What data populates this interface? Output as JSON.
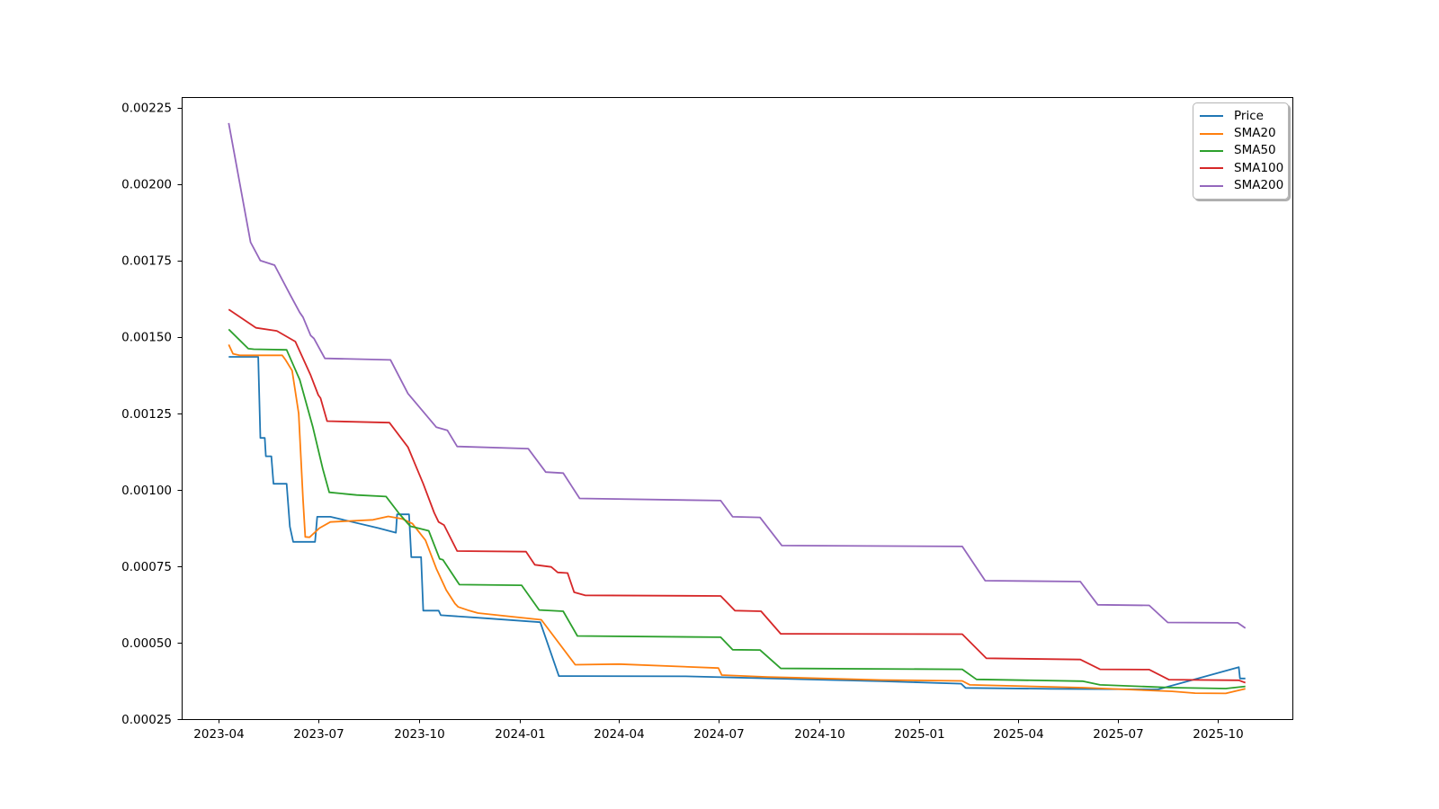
{
  "figure": {
    "background": "#ffffff"
  },
  "chart_data": {
    "type": "line",
    "title": "",
    "xlabel": "",
    "ylabel": "",
    "grid": false,
    "legend": {
      "position": "upper-right"
    },
    "x_axis": {
      "lim": [
        "2023-02-26",
        "2025-12-08"
      ],
      "tick_labels": [
        "2023-04",
        "2023-07",
        "2023-10",
        "2024-01",
        "2024-04",
        "2024-07",
        "2024-10",
        "2025-01",
        "2025-04",
        "2025-07",
        "2025-10"
      ]
    },
    "y_axis": {
      "lim": [
        0.00025,
        0.002285
      ],
      "tick_values": [
        0.00025,
        0.0005,
        0.00075,
        0.001,
        0.00125,
        0.0015,
        0.00175,
        0.002,
        0.00225
      ],
      "tick_labels": [
        "0.00025",
        "0.00050",
        "0.00075",
        "0.00100",
        "0.00125",
        "0.00150",
        "0.00175",
        "0.00200",
        "0.00225"
      ]
    },
    "series": [
      {
        "name": "Price",
        "color": "#1f77b4",
        "points": [
          [
            "2023-04-10",
            0.001435
          ],
          [
            "2023-05-07",
            0.001435
          ],
          [
            "2023-05-09",
            0.00117
          ],
          [
            "2023-05-13",
            0.00117
          ],
          [
            "2023-05-14",
            0.00111
          ],
          [
            "2023-05-19",
            0.00111
          ],
          [
            "2023-05-21",
            0.00102
          ],
          [
            "2023-06-02",
            0.00102
          ],
          [
            "2023-06-05",
            0.00088
          ],
          [
            "2023-06-08",
            0.00083
          ],
          [
            "2023-06-28",
            0.00083
          ],
          [
            "2023-06-30",
            0.000912
          ],
          [
            "2023-07-12",
            0.000912
          ],
          [
            "2023-08-25",
            0.000875
          ],
          [
            "2023-09-10",
            0.00086
          ],
          [
            "2023-09-11",
            0.00092
          ],
          [
            "2023-09-22",
            0.00092
          ],
          [
            "2023-09-24",
            0.00078
          ],
          [
            "2023-10-03",
            0.00078
          ],
          [
            "2023-10-05",
            0.000605
          ],
          [
            "2023-10-19",
            0.000605
          ],
          [
            "2023-10-21",
            0.00059
          ],
          [
            "2023-12-01",
            0.00058
          ],
          [
            "2024-01-20",
            0.000567
          ],
          [
            "2024-02-06",
            0.000391
          ],
          [
            "2024-06-01",
            0.00039
          ],
          [
            "2024-11-27",
            0.000374
          ],
          [
            "2025-02-08",
            0.000366
          ],
          [
            "2025-02-12",
            0.000352
          ],
          [
            "2025-05-01",
            0.000349
          ],
          [
            "2025-08-07",
            0.000347
          ],
          [
            "2025-10-20",
            0.00042
          ],
          [
            "2025-10-21",
            0.000383
          ],
          [
            "2025-10-26",
            0.000383
          ]
        ]
      },
      {
        "name": "SMA20",
        "color": "#ff7f0e",
        "points": [
          [
            "2023-04-10",
            0.001475
          ],
          [
            "2023-04-14",
            0.001445
          ],
          [
            "2023-04-20",
            0.00144
          ],
          [
            "2023-05-29",
            0.00144
          ],
          [
            "2023-06-01",
            0.001425
          ],
          [
            "2023-06-07",
            0.00139
          ],
          [
            "2023-06-13",
            0.00125
          ],
          [
            "2023-06-17",
            0.00097
          ],
          [
            "2023-06-19",
            0.000846
          ],
          [
            "2023-06-23",
            0.000845
          ],
          [
            "2023-07-02",
            0.000875
          ],
          [
            "2023-07-12",
            0.000895
          ],
          [
            "2023-08-20",
            0.000902
          ],
          [
            "2023-09-03",
            0.000913
          ],
          [
            "2023-09-16",
            0.000905
          ],
          [
            "2023-09-25",
            0.00089
          ],
          [
            "2023-10-07",
            0.000835
          ],
          [
            "2023-10-17",
            0.000742
          ],
          [
            "2023-10-26",
            0.000672
          ],
          [
            "2023-11-03",
            0.000628
          ],
          [
            "2023-11-06",
            0.000617
          ],
          [
            "2023-11-16",
            0.000605
          ],
          [
            "2023-11-24",
            0.000597
          ],
          [
            "2023-12-18",
            0.000588
          ],
          [
            "2024-01-21",
            0.000575
          ],
          [
            "2024-02-21",
            0.000428
          ],
          [
            "2024-04-01",
            0.00043
          ],
          [
            "2024-07-01",
            0.000417
          ],
          [
            "2024-07-04",
            0.000394
          ],
          [
            "2024-08-15",
            0.000388
          ],
          [
            "2024-11-27",
            0.000378
          ],
          [
            "2025-02-09",
            0.000375
          ],
          [
            "2025-02-16",
            0.000362
          ],
          [
            "2025-05-30",
            0.000353
          ],
          [
            "2025-08-20",
            0.000341
          ],
          [
            "2025-09-10",
            0.000335
          ],
          [
            "2025-10-08",
            0.000334
          ],
          [
            "2025-10-26",
            0.000349
          ]
        ]
      },
      {
        "name": "SMA50",
        "color": "#2ca02c",
        "points": [
          [
            "2023-04-10",
            0.001525
          ],
          [
            "2023-04-28",
            0.001462
          ],
          [
            "2023-05-03",
            0.00146
          ],
          [
            "2023-06-02",
            0.001458
          ],
          [
            "2023-06-14",
            0.00136
          ],
          [
            "2023-06-26",
            0.001205
          ],
          [
            "2023-07-05",
            0.00107
          ],
          [
            "2023-07-11",
            0.000992
          ],
          [
            "2023-08-05",
            0.000983
          ],
          [
            "2023-09-01",
            0.000978
          ],
          [
            "2023-09-13",
            0.000922
          ],
          [
            "2023-09-23",
            0.000881
          ],
          [
            "2023-10-10",
            0.000866
          ],
          [
            "2023-10-20",
            0.000774
          ],
          [
            "2023-10-23",
            0.000771
          ],
          [
            "2023-11-07",
            0.00069
          ],
          [
            "2024-01-03",
            0.000688
          ],
          [
            "2024-01-19",
            0.000607
          ],
          [
            "2024-02-10",
            0.000603
          ],
          [
            "2024-02-23",
            0.000522
          ],
          [
            "2024-07-03",
            0.000518
          ],
          [
            "2024-07-14",
            0.000477
          ],
          [
            "2024-08-08",
            0.000476
          ],
          [
            "2024-08-27",
            0.000416
          ],
          [
            "2025-02-09",
            0.000413
          ],
          [
            "2025-02-22",
            0.00038
          ],
          [
            "2025-05-30",
            0.000374
          ],
          [
            "2025-06-15",
            0.000362
          ],
          [
            "2025-08-20",
            0.000353
          ],
          [
            "2025-10-08",
            0.00035
          ],
          [
            "2025-10-26",
            0.000357
          ]
        ]
      },
      {
        "name": "SMA100",
        "color": "#d62728",
        "points": [
          [
            "2023-04-10",
            0.00159
          ],
          [
            "2023-05-05",
            0.00153
          ],
          [
            "2023-05-24",
            0.00152
          ],
          [
            "2023-06-10",
            0.001485
          ],
          [
            "2023-06-24",
            0.001375
          ],
          [
            "2023-07-01",
            0.00131
          ],
          [
            "2023-07-03",
            0.0013
          ],
          [
            "2023-07-09",
            0.001225
          ],
          [
            "2023-09-04",
            0.00122
          ],
          [
            "2023-09-21",
            0.00114
          ],
          [
            "2023-10-05",
            0.00102
          ],
          [
            "2023-10-15",
            0.000925
          ],
          [
            "2023-10-19",
            0.000895
          ],
          [
            "2023-10-24",
            0.000885
          ],
          [
            "2023-11-05",
            0.0008
          ],
          [
            "2024-01-07",
            0.000798
          ],
          [
            "2024-01-15",
            0.000755
          ],
          [
            "2024-01-30",
            0.000748
          ],
          [
            "2024-02-05",
            0.00073
          ],
          [
            "2024-02-14",
            0.000728
          ],
          [
            "2024-02-20",
            0.000665
          ],
          [
            "2024-03-01",
            0.000655
          ],
          [
            "2024-07-03",
            0.000653
          ],
          [
            "2024-07-16",
            0.000605
          ],
          [
            "2024-08-09",
            0.000603
          ],
          [
            "2024-08-27",
            0.000529
          ],
          [
            "2025-02-09",
            0.000528
          ],
          [
            "2025-03-03",
            0.000449
          ],
          [
            "2025-05-28",
            0.000445
          ],
          [
            "2025-06-15",
            0.000413
          ],
          [
            "2025-07-30",
            0.000412
          ],
          [
            "2025-08-17",
            0.000379
          ],
          [
            "2025-10-20",
            0.000377
          ],
          [
            "2025-10-26",
            0.000369
          ]
        ]
      },
      {
        "name": "SMA200",
        "color": "#9467bd",
        "points": [
          [
            "2023-04-10",
            0.0022
          ],
          [
            "2023-04-30",
            0.00181
          ],
          [
            "2023-05-09",
            0.00175
          ],
          [
            "2023-05-22",
            0.001735
          ],
          [
            "2023-06-05",
            0.00164
          ],
          [
            "2023-06-14",
            0.00158
          ],
          [
            "2023-06-17",
            0.001565
          ],
          [
            "2023-06-24",
            0.001505
          ],
          [
            "2023-06-27",
            0.001495
          ],
          [
            "2023-07-07",
            0.00143
          ],
          [
            "2023-09-05",
            0.001425
          ],
          [
            "2023-09-21",
            0.001315
          ],
          [
            "2023-10-17",
            0.001205
          ],
          [
            "2023-10-27",
            0.001195
          ],
          [
            "2023-11-05",
            0.001142
          ],
          [
            "2024-01-09",
            0.001135
          ],
          [
            "2024-01-25",
            0.001058
          ],
          [
            "2024-02-10",
            0.001055
          ],
          [
            "2024-02-25",
            0.000972
          ],
          [
            "2024-07-03",
            0.000965
          ],
          [
            "2024-07-14",
            0.000912
          ],
          [
            "2024-08-08",
            0.00091
          ],
          [
            "2024-08-28",
            0.000818
          ],
          [
            "2025-02-09",
            0.000815
          ],
          [
            "2025-03-02",
            0.000703
          ],
          [
            "2025-05-28",
            0.0007
          ],
          [
            "2025-06-13",
            0.000624
          ],
          [
            "2025-07-30",
            0.000622
          ],
          [
            "2025-08-16",
            0.000566
          ],
          [
            "2025-10-19",
            0.000565
          ],
          [
            "2025-10-26",
            0.000548
          ]
        ]
      }
    ]
  }
}
